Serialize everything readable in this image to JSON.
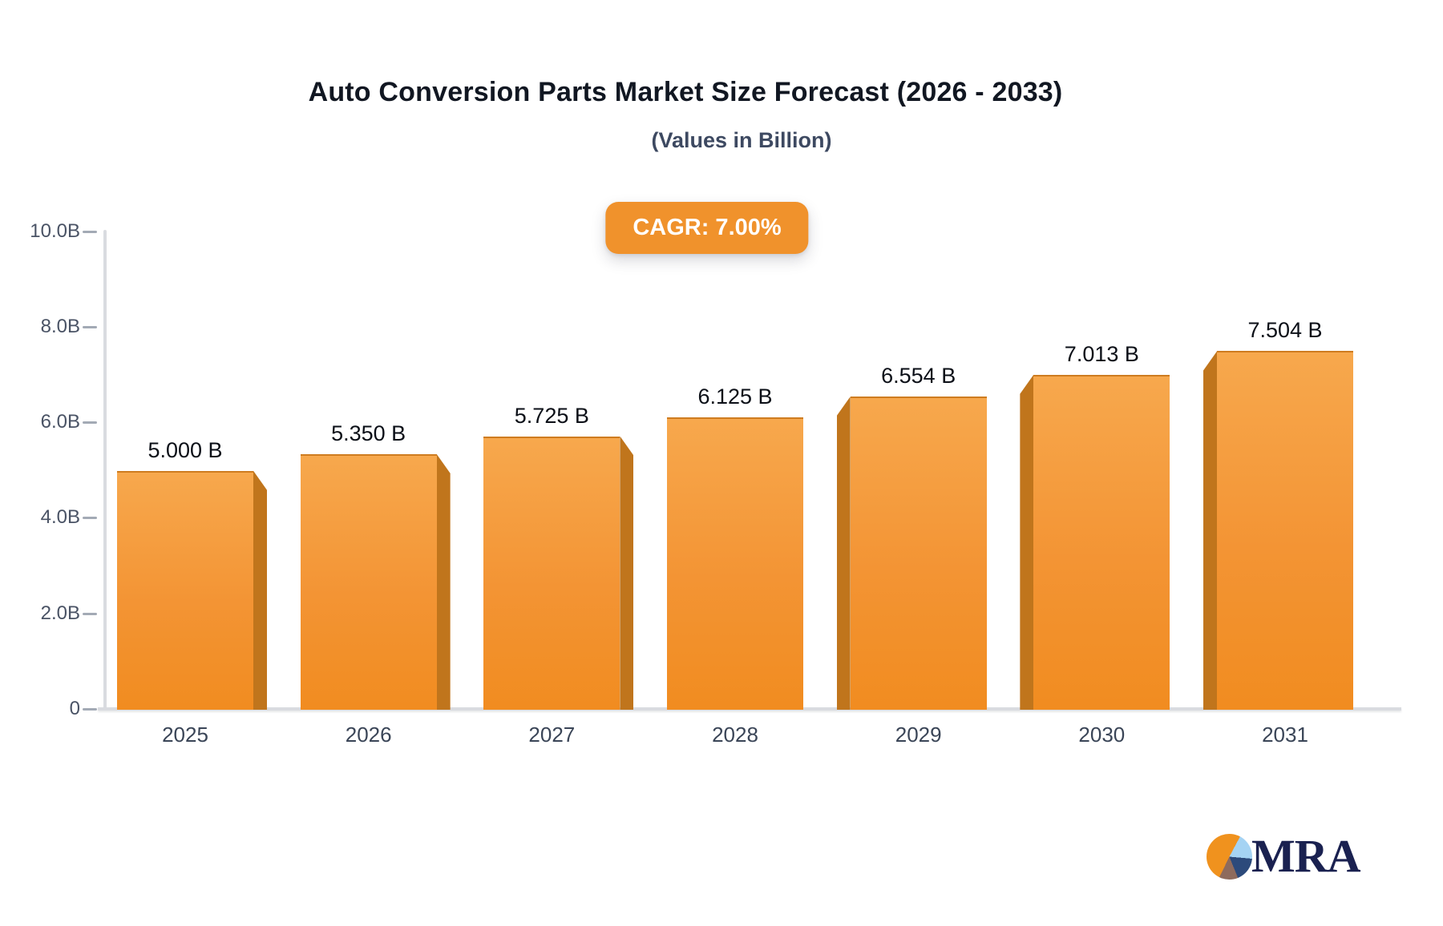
{
  "badge": {
    "label": "CAGR: 7.00%"
  },
  "logo": {
    "text": "MRA"
  },
  "colors": {
    "accent": "#F0922C",
    "bar_gradient_top": "#F7A84D",
    "bar_gradient_bottom": "#F18C20",
    "bar_side": "#C0751C",
    "axis": "#D9DBE0",
    "tick_dash": "#A3AAB5",
    "tick_label": "#4A5365",
    "category_label": "#3A4557",
    "value_label": "#0B0F17",
    "title": "#111722",
    "subtitle": "#3D4961",
    "logo_navy": "#1A2150",
    "logo_pie_orange": "#F0921E",
    "logo_pie_lightblue": "#A5D3F3",
    "logo_pie_navy": "#2C4A7B",
    "logo_pie_brown": "#8E6B5D"
  },
  "chart_data": {
    "type": "bar",
    "title": "Auto Conversion Parts Market Size Forecast (2026 - 2033)",
    "subtitle": "(Values in Billion)",
    "categories": [
      "2025",
      "2026",
      "2027",
      "2028",
      "2029",
      "2030",
      "2031"
    ],
    "values": [
      5.0,
      5.35,
      5.725,
      6.125,
      6.554,
      7.013,
      7.504
    ],
    "bar_labels": [
      "5.000 B",
      "5.350 B",
      "5.725 B",
      "6.125 B",
      "6.554 B",
      "7.013 B",
      "7.504 B"
    ],
    "xlabel": "",
    "ylabel": "",
    "ylim": [
      0,
      10
    ],
    "yticks": {
      "values": [
        10,
        8,
        6,
        4,
        2,
        0
      ],
      "labels": [
        "10.0B",
        "8.0B",
        "6.0B",
        "4.0B",
        "2.0B",
        "0"
      ]
    },
    "grid": false,
    "legend": null,
    "annotations": [
      "CAGR: 7.00%"
    ],
    "bar_style": "3d-perspective, side faces point away from center"
  }
}
